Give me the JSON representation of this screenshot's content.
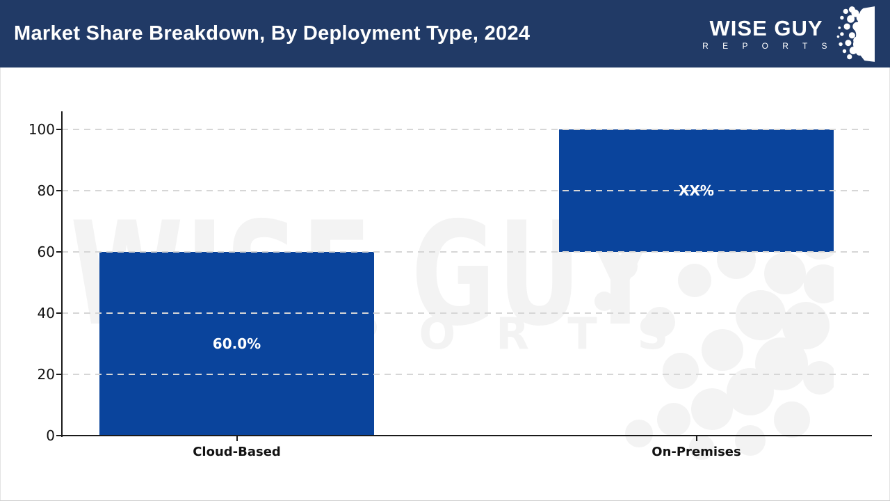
{
  "header": {
    "title": "Market Share Breakdown, By Deployment Type, 2024",
    "bg_color": "#213a66",
    "logo": {
      "line1": "WISE GUY",
      "line2": "R E P O R T S"
    }
  },
  "watermark": {
    "line1": "WISE GUY",
    "line2": "REPORTS",
    "color": "#f3f3f3"
  },
  "chart_data": {
    "type": "bar",
    "subtype": "floating-range-bars",
    "title": "Market Share Breakdown, By Deployment Type, 2024",
    "categories": [
      "Cloud-Based",
      "On-Premises"
    ],
    "bars": [
      {
        "category": "Cloud-Based",
        "start": 0,
        "end": 60,
        "label": "60.0%"
      },
      {
        "category": "On-Premises",
        "start": 60,
        "end": 100,
        "label": "XX%"
      }
    ],
    "yticks": [
      0,
      20,
      40,
      60,
      80,
      100
    ],
    "ylim": [
      0,
      105.8
    ],
    "xlabel": "",
    "ylabel": "",
    "grid": "dashed-horizontal",
    "legend": "none",
    "bar_color": "#0a449c",
    "bar_label_color": "#ffffff",
    "gridline_color": "#d6d6d6",
    "axis_color": "#1a1a1a"
  }
}
